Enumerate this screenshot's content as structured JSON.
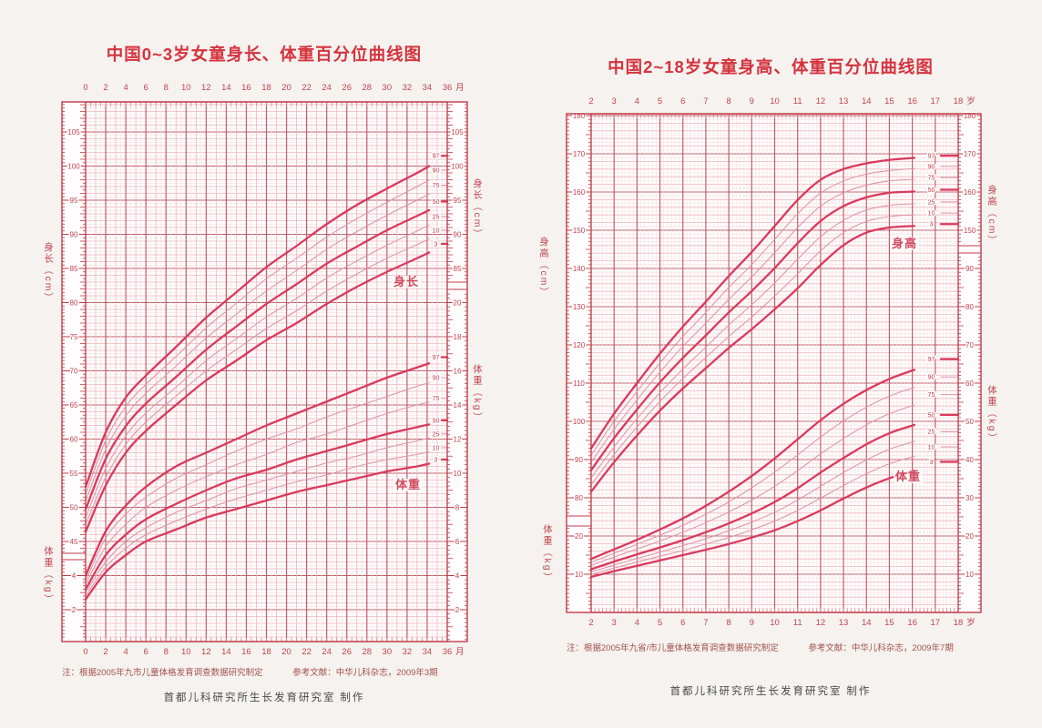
{
  "colors": {
    "title": "#d5333e",
    "frame": "#c13b47",
    "axis_text": "#c1454f",
    "grid_major": "#c25e68",
    "grid_medium": "#edb6bc",
    "grid_fine": "#f6dde0",
    "tick": "#d98c94",
    "curve_main": "#d93a5c",
    "curve_light": "#dd95a8",
    "plot_bg": "#fffdfd",
    "page_bg": "#f5f2ef",
    "note_text": "#a4524e",
    "credit_text": "#4a4a4a"
  },
  "chart_data": [
    {
      "type": "line",
      "title": "中国0~3岁女童身长、体重百分位曲线图",
      "x_unit": "月",
      "x_ticks": [
        0,
        2,
        4,
        6,
        8,
        10,
        12,
        14,
        16,
        18,
        20,
        22,
        24,
        26,
        28,
        30,
        32,
        34,
        36
      ],
      "x_range": [
        0,
        36
      ],
      "percentiles": [
        "97",
        "90",
        "75",
        "50",
        "25",
        "10",
        "3"
      ],
      "legend_position": "curve-end-labels",
      "grid": "on",
      "note": "注：根据2005年九市儿童体格发育调查数据研究制定",
      "reference": "参考文献：中华儿科杂志，2009年3期",
      "credit": "首都儿科研究所生长发育研究室  制作",
      "panels": [
        {
          "measure": "身长",
          "unit": "cm",
          "axis_label": "身长（cm）",
          "in_chart_label": "身长",
          "y_range": [
            43,
            109
          ],
          "left_axis_labels": [
            45,
            50,
            55,
            60,
            65,
            70,
            75,
            80,
            85,
            90,
            95,
            100,
            105
          ],
          "right_axis_labels": [
            85,
            90,
            95,
            100,
            105
          ],
          "x": [
            0,
            2,
            4,
            6,
            9,
            12,
            15,
            18,
            21,
            24,
            27,
            30,
            33,
            36
          ],
          "series": {
            "97": [
              53.0,
              61.0,
              66.1,
              69.3,
              73.5,
              77.8,
              81.5,
              85.2,
              88.3,
              91.5,
              94.3,
              96.7,
              99.0,
              101.5
            ],
            "90": [
              51.9,
              59.8,
              64.8,
              68.0,
              72.1,
              76.3,
              79.9,
              83.5,
              86.5,
              89.6,
              92.3,
              94.7,
              97.0,
              99.4
            ],
            "75": [
              50.9,
              58.5,
              63.4,
              66.7,
              70.7,
              74.8,
              78.3,
              81.7,
              84.7,
              87.8,
              90.4,
              92.8,
              95.0,
              97.2
            ],
            "50": [
              49.7,
              57.1,
              61.9,
              65.2,
              69.1,
              73.1,
              76.5,
              79.8,
              82.7,
              85.7,
              88.2,
              90.6,
              92.7,
              94.8
            ],
            "25": [
              48.5,
              55.7,
              60.5,
              63.8,
              67.6,
              71.5,
              74.7,
              77.9,
              80.6,
              83.6,
              86.1,
              88.4,
              90.5,
              92.6
            ],
            "10": [
              47.5,
              54.4,
              59.2,
              62.5,
              66.3,
              70.0,
              73.1,
              76.2,
              78.8,
              81.7,
              84.2,
              86.5,
              88.5,
              90.6
            ],
            "3": [
              46.4,
              53.2,
              58.0,
              61.2,
              65.0,
              68.6,
              71.5,
              74.5,
              77.0,
              79.8,
              82.3,
              84.5,
              86.5,
              88.6
            ]
          }
        },
        {
          "measure": "体重",
          "unit": "kg",
          "axis_label": "体重（kg）",
          "in_chart_label": "体重",
          "y_range": [
            0,
            21
          ],
          "left_axis_labels": [
            2,
            4
          ],
          "right_axis_labels": [
            2,
            4,
            6,
            8,
            10,
            12,
            14,
            16,
            18,
            20
          ],
          "x": [
            0,
            2,
            4,
            6,
            9,
            12,
            15,
            18,
            21,
            24,
            27,
            30,
            33,
            36
          ],
          "series": {
            "97": [
              4.0,
              6.6,
              8.1,
              9.2,
              10.4,
              11.2,
              12.0,
              12.8,
              13.5,
              14.2,
              14.9,
              15.6,
              16.2,
              16.8
            ],
            "90": [
              3.7,
              6.2,
              7.6,
              8.6,
              9.7,
              10.5,
              11.3,
              12.0,
              12.6,
              13.3,
              13.9,
              14.5,
              15.1,
              15.6
            ],
            "75": [
              3.5,
              5.7,
              7.0,
              8.0,
              9.0,
              9.8,
              10.5,
              11.1,
              11.8,
              12.3,
              12.9,
              13.5,
              14.0,
              14.4
            ],
            "50": [
              3.2,
              5.2,
              6.4,
              7.3,
              8.2,
              9.0,
              9.7,
              10.2,
              10.8,
              11.3,
              11.8,
              12.3,
              12.7,
              13.1
            ],
            "25": [
              3.0,
              4.8,
              6.0,
              6.8,
              7.7,
              8.4,
              9.1,
              9.6,
              10.1,
              10.6,
              11.0,
              11.5,
              11.9,
              12.3
            ],
            "10": [
              2.8,
              4.5,
              5.6,
              6.4,
              7.2,
              7.9,
              8.5,
              9.0,
              9.5,
              9.9,
              10.4,
              10.8,
              11.1,
              11.5
            ],
            "3": [
              2.6,
              4.2,
              5.2,
              6.0,
              6.7,
              7.4,
              7.9,
              8.4,
              8.9,
              9.3,
              9.7,
              10.1,
              10.4,
              10.8
            ]
          }
        }
      ]
    },
    {
      "type": "line",
      "title": "中国2~18岁女童身高、体重百分位曲线图",
      "x_unit": "岁",
      "x_ticks": [
        2,
        3,
        4,
        5,
        6,
        7,
        8,
        9,
        10,
        11,
        12,
        13,
        14,
        15,
        16,
        17,
        18
      ],
      "x_range": [
        2,
        18
      ],
      "percentiles": [
        "97",
        "90",
        "75",
        "50",
        "25",
        "10",
        "3"
      ],
      "legend_position": "curve-end-labels",
      "grid": "on",
      "note": "注：根据2005年九省/市儿童体格发育调查数据研究制定",
      "reference": "参考文献：中华儿科杂志，2009年7期",
      "credit": "首都儿科研究所生长发育研究室  制作",
      "panels": [
        {
          "measure": "身高",
          "unit": "cm",
          "axis_label": "身高（cm）",
          "in_chart_label": "身高",
          "y_range": [
            75,
            180
          ],
          "left_axis_labels": [
            80,
            90,
            100,
            110,
            120,
            130,
            140,
            150,
            160,
            170,
            180
          ],
          "right_axis_labels": [
            150,
            160,
            170,
            180
          ],
          "x": [
            2,
            3,
            4,
            5,
            6,
            7,
            8,
            9,
            10,
            11,
            12,
            13,
            14,
            15,
            16,
            17,
            18
          ],
          "series": {
            "97": [
              92.9,
              102.0,
              110.0,
              117.7,
              124.8,
              131.3,
              138.0,
              144.3,
              151.1,
              157.9,
              163.2,
              166.0,
              167.5,
              168.4,
              168.9,
              169.2,
              169.5
            ],
            "90": [
              91.1,
              100.0,
              107.8,
              115.3,
              122.2,
              128.5,
              135.0,
              141.0,
              147.6,
              154.3,
              159.7,
              162.9,
              164.7,
              165.6,
              166.1,
              166.4,
              166.7
            ],
            "75": [
              89.3,
              97.9,
              105.6,
              112.9,
              119.6,
              125.7,
              131.9,
              137.8,
              144.1,
              150.7,
              156.3,
              159.8,
              161.8,
              162.9,
              163.3,
              163.5,
              163.8
            ],
            "50": [
              87.2,
              95.6,
              103.1,
              110.2,
              116.6,
              122.5,
              128.5,
              134.1,
              140.1,
              146.6,
              152.4,
              156.3,
              158.6,
              159.8,
              160.1,
              160.3,
              160.6
            ],
            "25": [
              85.2,
              93.3,
              100.7,
              107.5,
              113.7,
              119.4,
              125.2,
              130.5,
              136.2,
              142.4,
              148.3,
              152.6,
              155.3,
              156.5,
              156.9,
              157.1,
              157.4
            ],
            "10": [
              83.4,
              91.3,
              98.5,
              105.2,
              111.2,
              116.7,
              122.2,
              127.3,
              132.8,
              138.6,
              144.6,
              149.4,
              152.3,
              153.6,
              154.0,
              154.2,
              154.5
            ],
            "3": [
              81.6,
              89.3,
              96.3,
              102.8,
              108.6,
              113.9,
              119.2,
              124.1,
              129.3,
              134.8,
              140.9,
              146.1,
              149.4,
              150.7,
              151.1,
              151.3,
              151.6
            ]
          }
        },
        {
          "measure": "体重",
          "unit": "kg",
          "axis_label": "体重（kg）",
          "in_chart_label": "体重",
          "y_range": [
            0,
            95
          ],
          "left_axis_labels": [
            10,
            20
          ],
          "right_axis_labels": [
            10,
            20,
            30,
            40,
            50,
            60,
            70,
            80,
            90
          ],
          "x": [
            2,
            3,
            4,
            5,
            6,
            7,
            8,
            9,
            10,
            11,
            12,
            13,
            14,
            15,
            16,
            17,
            18
          ],
          "series": {
            "97": [
              14.0,
              16.5,
              19.0,
              21.7,
              24.6,
              27.9,
              31.6,
              35.7,
              40.3,
              45.3,
              50.3,
              54.6,
              58.2,
              61.1,
              63.3,
              65.0,
              66.3
            ],
            "90": [
              13.1,
              15.5,
              17.8,
              20.2,
              22.8,
              25.7,
              28.9,
              32.6,
              36.7,
              41.2,
              45.9,
              50.1,
              53.7,
              56.6,
              58.7,
              60.4,
              61.6
            ],
            "75": [
              12.3,
              14.5,
              16.6,
              18.7,
              21.0,
              23.5,
              26.3,
              29.4,
              33.0,
              37.1,
              41.5,
              45.5,
              49.1,
              52.0,
              54.1,
              55.7,
              57.0
            ],
            "50": [
              11.3,
              13.3,
              15.2,
              17.0,
              18.9,
              21.0,
              23.3,
              25.9,
              28.9,
              32.5,
              36.6,
              40.4,
              44.0,
              46.9,
              48.9,
              50.5,
              51.7
            ],
            "25": [
              10.6,
              12.4,
              14.1,
              15.8,
              17.5,
              19.3,
              21.4,
              23.6,
              26.2,
              29.4,
              33.0,
              36.6,
              39.9,
              42.7,
              44.6,
              46.1,
              47.3
            ],
            "10": [
              9.9,
              11.6,
              13.2,
              14.7,
              16.2,
              17.9,
              19.6,
              21.6,
              23.9,
              26.7,
              29.9,
              33.2,
              36.3,
              38.9,
              40.7,
              42.2,
              43.3
            ],
            "3": [
              9.3,
              10.8,
              12.2,
              13.6,
              15.0,
              16.4,
              17.9,
              19.6,
              21.5,
              23.9,
              26.7,
              29.8,
              32.7,
              35.1,
              36.9,
              38.3,
              39.4
            ]
          }
        }
      ]
    }
  ]
}
